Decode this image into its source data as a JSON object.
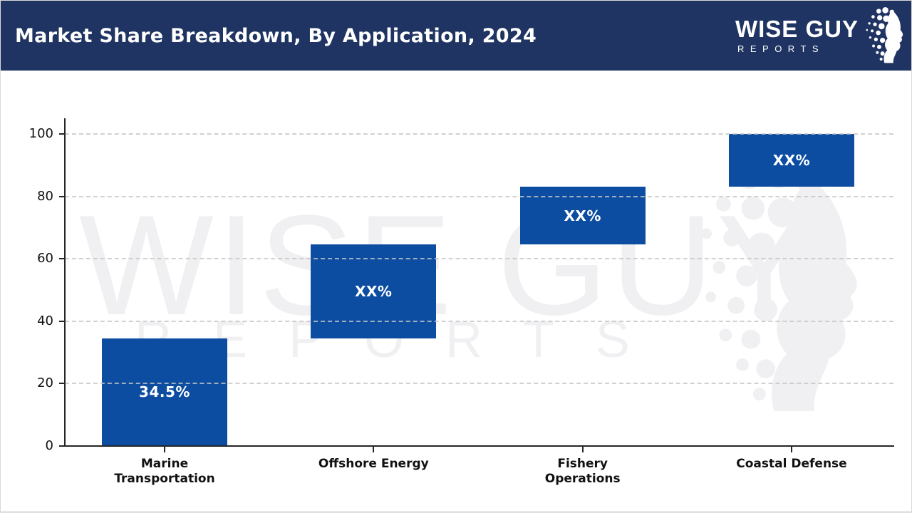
{
  "header": {
    "title": "Market Share Breakdown, By Application, 2024",
    "bg_color": "#1f3462",
    "logo": {
      "line1": "WISE GUY",
      "line2": "REPORTS"
    }
  },
  "watermark": {
    "line1": "WISE GUY",
    "line2": "REPORTS"
  },
  "chart_data": {
    "type": "bar",
    "subtype": "floating-waterfall",
    "title": "Market Share Breakdown, By Application, 2024",
    "categories": [
      "Marine Transportation",
      "Offshore Energy",
      "Fishery Operations",
      "Coastal Defense"
    ],
    "series": [
      {
        "name": "Market Share (%)",
        "segments": [
          {
            "category": "Marine Transportation",
            "start": 0,
            "end": 34.5,
            "label": "34.5%"
          },
          {
            "category": "Offshore Energy",
            "start": 34.5,
            "end": 64.5,
            "label": "XX%"
          },
          {
            "category": "Fishery Operations",
            "start": 64.5,
            "end": 83,
            "label": "XX%"
          },
          {
            "category": "Coastal Defense",
            "start": 83,
            "end": 100,
            "label": "XX%"
          }
        ]
      }
    ],
    "xlabel": "",
    "ylabel": "",
    "ylim": [
      0,
      100
    ],
    "yticks": [
      0,
      20,
      40,
      60,
      80,
      100
    ],
    "grid": "dashed-horizontal",
    "legend": false,
    "bar_color": "#0d4da1",
    "bar_label_color": "#ffffff",
    "axis_color": "#262626"
  }
}
